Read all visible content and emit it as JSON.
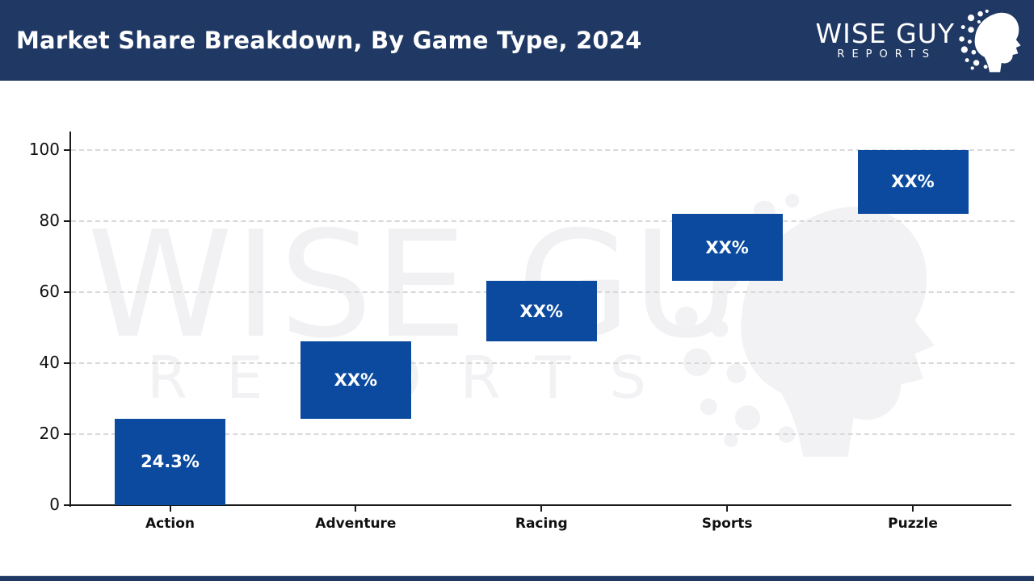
{
  "header": {
    "title": "Market Share Breakdown, By Game Type, 2024",
    "logo": {
      "line1": "WISE GUY",
      "line2": "REPORTS"
    }
  },
  "watermark": {
    "line1": "WISE GUY",
    "line2": "REPORTS"
  },
  "colors": {
    "header_bg": "#1f3864",
    "footer_bg": "#1f3864",
    "bar": "#0b4a9e",
    "bar_label": "#ffffff",
    "grid": "#d9d9d9",
    "axis": "#1a1a1a",
    "watermark": "#f1f1f4"
  },
  "chart_data": {
    "type": "bar",
    "subtype": "floating-waterfall",
    "title": "Market Share Breakdown, By Game Type, 2024",
    "categories": [
      "Action",
      "Adventure",
      "Racing",
      "Sports",
      "Puzzle"
    ],
    "bars": [
      {
        "category": "Action",
        "start": 0,
        "end": 24.3,
        "label": "24.3%"
      },
      {
        "category": "Adventure",
        "start": 24.3,
        "end": 46,
        "label": "XX%"
      },
      {
        "category": "Racing",
        "start": 46,
        "end": 63,
        "label": "XX%"
      },
      {
        "category": "Sports",
        "start": 63,
        "end": 82,
        "label": "XX%"
      },
      {
        "category": "Puzzle",
        "start": 82,
        "end": 100,
        "label": "XX%"
      }
    ],
    "xlabel": "",
    "ylabel": "",
    "ylim": [
      0,
      105
    ],
    "yticks": [
      0,
      20,
      40,
      60,
      80,
      100
    ],
    "grid": "horizontal-dashed",
    "legend": "none"
  }
}
